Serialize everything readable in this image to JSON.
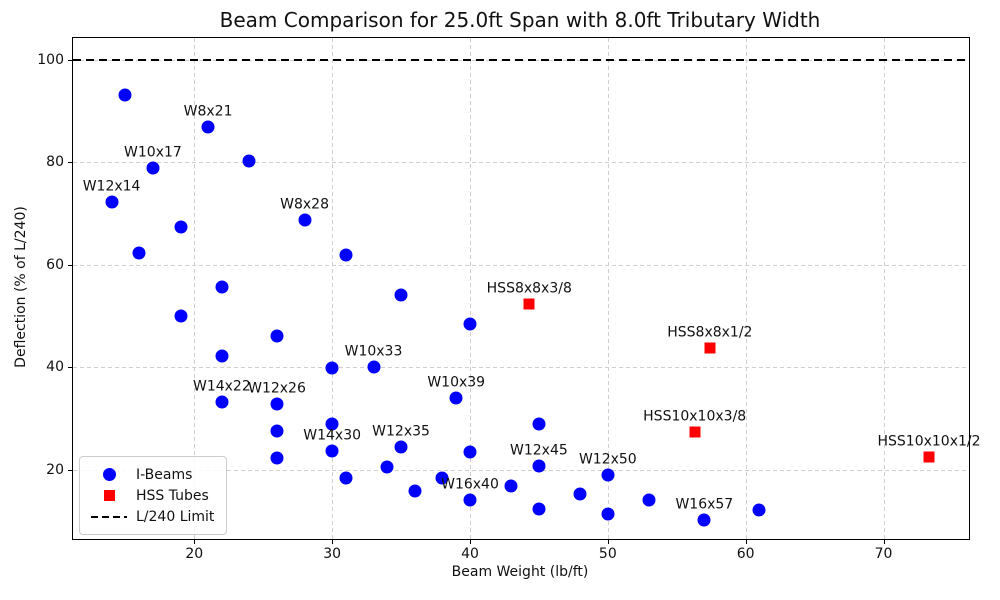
{
  "chart_data": {
    "type": "scatter",
    "title": "Beam Comparison for 25.0ft Span with 8.0ft Tributary Width",
    "xlabel": "Beam Weight (lb/ft)",
    "ylabel": "Deflection (% of L/240)",
    "xlim": [
      11.2,
      76.2
    ],
    "ylim": [
      6.5,
      104.3
    ],
    "xticks": [
      20,
      30,
      40,
      50,
      60,
      70
    ],
    "yticks": [
      20,
      40,
      60,
      80,
      100
    ],
    "grid": true,
    "grid_color": "#cccccc",
    "legend_position": "lower-left",
    "limit_line": {
      "y": 100,
      "label": "L/240 Limit",
      "style": "dashed",
      "color": "#000000"
    },
    "series": [
      {
        "name": "I-Beams",
        "marker": "circle",
        "color": "#0000ff",
        "points": [
          {
            "x": 15,
            "y": 93.2
          },
          {
            "x": 21,
            "y": 86.9,
            "label": "W8x21"
          },
          {
            "x": 24,
            "y": 80.3
          },
          {
            "x": 17,
            "y": 79.0,
            "label": "W10x17"
          },
          {
            "x": 14,
            "y": 72.2,
            "label": "W12x14"
          },
          {
            "x": 28,
            "y": 68.7,
            "label": "W8x28"
          },
          {
            "x": 19,
            "y": 67.5
          },
          {
            "x": 16,
            "y": 62.3
          },
          {
            "x": 31,
            "y": 61.9
          },
          {
            "x": 22,
            "y": 55.7
          },
          {
            "x": 35,
            "y": 54.2
          },
          {
            "x": 19,
            "y": 50.0
          },
          {
            "x": 40,
            "y": 48.4
          },
          {
            "x": 26,
            "y": 46.2
          },
          {
            "x": 22,
            "y": 42.2
          },
          {
            "x": 30,
            "y": 39.9
          },
          {
            "x": 33,
            "y": 40.1,
            "label": "W10x33"
          },
          {
            "x": 39,
            "y": 34.0,
            "label": "W10x39"
          },
          {
            "x": 22,
            "y": 33.3,
            "label": "W14x22"
          },
          {
            "x": 26,
            "y": 32.9,
            "label": "W12x26"
          },
          {
            "x": 45,
            "y": 29.0
          },
          {
            "x": 30,
            "y": 28.9
          },
          {
            "x": 26,
            "y": 27.5
          },
          {
            "x": 35,
            "y": 24.5,
            "label": "W12x35"
          },
          {
            "x": 30,
            "y": 23.6,
            "label": "W14x30"
          },
          {
            "x": 40,
            "y": 23.4
          },
          {
            "x": 26,
            "y": 22.4
          },
          {
            "x": 45,
            "y": 20.7,
            "label": "W12x45"
          },
          {
            "x": 34,
            "y": 20.6
          },
          {
            "x": 50,
            "y": 19.0,
            "label": "W12x50"
          },
          {
            "x": 31,
            "y": 18.5
          },
          {
            "x": 38,
            "y": 18.4
          },
          {
            "x": 43,
            "y": 16.9
          },
          {
            "x": 36,
            "y": 15.9
          },
          {
            "x": 48,
            "y": 15.3
          },
          {
            "x": 40,
            "y": 14.1,
            "label": "W16x40"
          },
          {
            "x": 53,
            "y": 14.1
          },
          {
            "x": 45,
            "y": 12.4
          },
          {
            "x": 61,
            "y": 12.2
          },
          {
            "x": 50,
            "y": 11.4
          },
          {
            "x": 57,
            "y": 10.2,
            "label": "W16x57"
          }
        ]
      },
      {
        "name": "HSS Tubes",
        "marker": "square",
        "color": "#ff0000",
        "points": [
          {
            "x": 44.3,
            "y": 52.4,
            "label": "HSS8x8x3/8"
          },
          {
            "x": 57.4,
            "y": 43.7,
            "label": "HSS8x8x1/2"
          },
          {
            "x": 56.3,
            "y": 27.4,
            "label": "HSS10x10x3/8"
          },
          {
            "x": 73.3,
            "y": 22.6,
            "label": "HSS10x10x1/2"
          }
        ]
      }
    ]
  },
  "legend": {
    "entries": [
      {
        "label": "I-Beams",
        "marker": "circle",
        "color": "#0000ff"
      },
      {
        "label": "HSS Tubes",
        "marker": "square",
        "color": "#ff0000"
      },
      {
        "label": "L/240 Limit",
        "marker": "dash",
        "color": "#000000"
      }
    ]
  },
  "colors": {
    "i_beams": "#0000ff",
    "hss_tubes": "#ff0000",
    "limit_line": "#000000",
    "grid": "#cccccc"
  }
}
